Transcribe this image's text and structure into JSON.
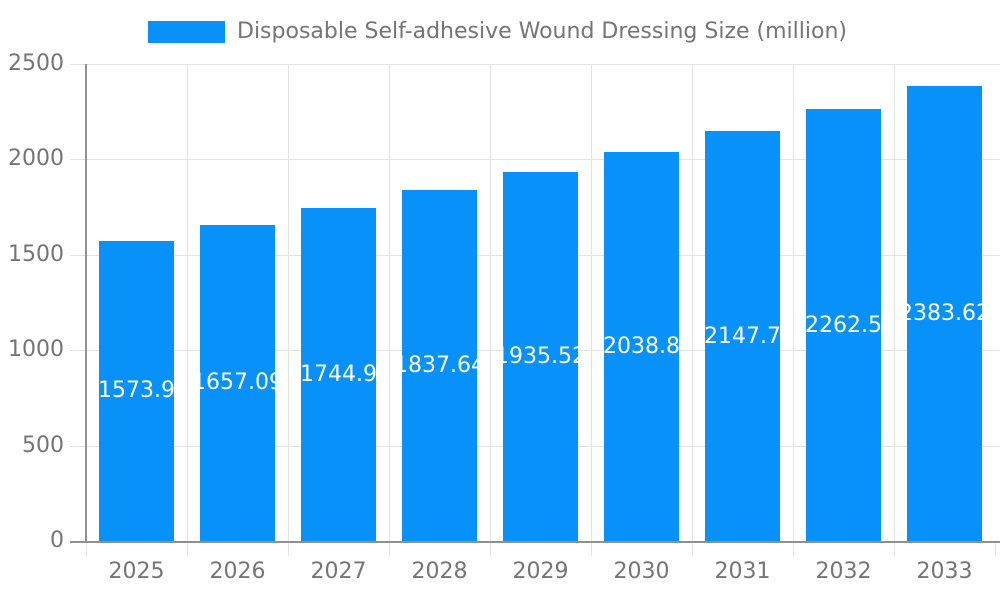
{
  "legend": {
    "label": "Disposable Self-adhesive Wound Dressing Size (million)"
  },
  "chart_data": {
    "type": "bar",
    "title": "Disposable Self-adhesive Wound Dressing Size (million)",
    "categories": [
      "2025",
      "2026",
      "2027",
      "2028",
      "2029",
      "2030",
      "2031",
      "2032",
      "2033"
    ],
    "values": [
      1573.9,
      1657.09,
      1744.9,
      1837.64,
      1935.52,
      2038.8,
      2147.7,
      2262.5,
      2383.62
    ],
    "bar_labels": [
      "1573.9",
      "1657.09",
      "1744.9",
      "1837.64",
      "1935.52",
      "2038.8",
      "2147.7",
      "2262.5",
      "2383.62"
    ],
    "xlabel": "",
    "ylabel": "",
    "ylim": [
      0,
      2500
    ],
    "yticks": [
      0,
      500,
      1000,
      1500,
      2000,
      2500
    ],
    "grid": true,
    "legend_position": "top",
    "bar_color": "#0991fa",
    "bar_label_color": "#ffffff",
    "axis_text_color": "#757575",
    "axis_line_color": "#909090",
    "grid_color": "#e3e3e3"
  }
}
